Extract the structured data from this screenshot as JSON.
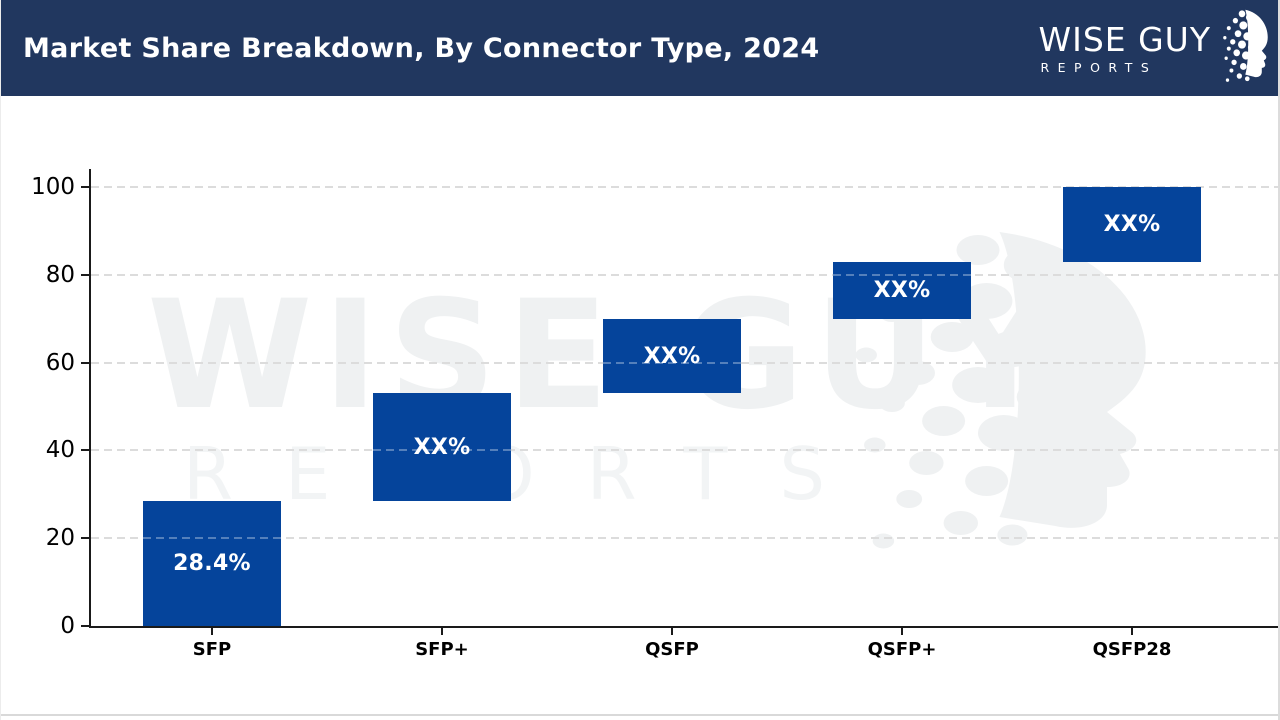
{
  "header": {
    "title": "Market Share Breakdown, By Connector Type, 2024",
    "logo": {
      "line1": "WISE GUY",
      "line2": "REPORTS"
    }
  },
  "watermark": {
    "line1": "WISE GUY",
    "line2": "REPORTS"
  },
  "colors": {
    "header_bg": "#21375f",
    "bar": "#05449b",
    "grid": "#dcdcdc",
    "axis": "#1a1a1a",
    "bar_label": "#ffffff",
    "watermark": "#eff1f2"
  },
  "chart_data": {
    "type": "bar",
    "subtype": "waterfall",
    "title": "Market Share Breakdown, By Connector Type, 2024",
    "xlabel": "",
    "ylabel": "",
    "categories": [
      "SFP",
      "SFP+",
      "QSFP",
      "QSFP+",
      "QSFP28"
    ],
    "segments": [
      {
        "category": "SFP",
        "start": 0,
        "end": 28.4,
        "value": 28.4,
        "label": "28.4%"
      },
      {
        "category": "SFP+",
        "start": 28.4,
        "end": 53,
        "value": 24.6,
        "label": "XX%"
      },
      {
        "category": "QSFP",
        "start": 53,
        "end": 70,
        "value": 17,
        "label": "XX%"
      },
      {
        "category": "QSFP+",
        "start": 70,
        "end": 83,
        "value": 13,
        "label": "XX%"
      },
      {
        "category": "QSFP28",
        "start": 83,
        "end": 100,
        "value": 17,
        "label": "XX%"
      }
    ],
    "y_ticks": [
      0,
      20,
      40,
      60,
      80,
      100
    ],
    "ylim": [
      0,
      105
    ],
    "grid": "dashed horizontal gray lines at each y tick",
    "legend": "none",
    "bar_color": "#05449b"
  }
}
